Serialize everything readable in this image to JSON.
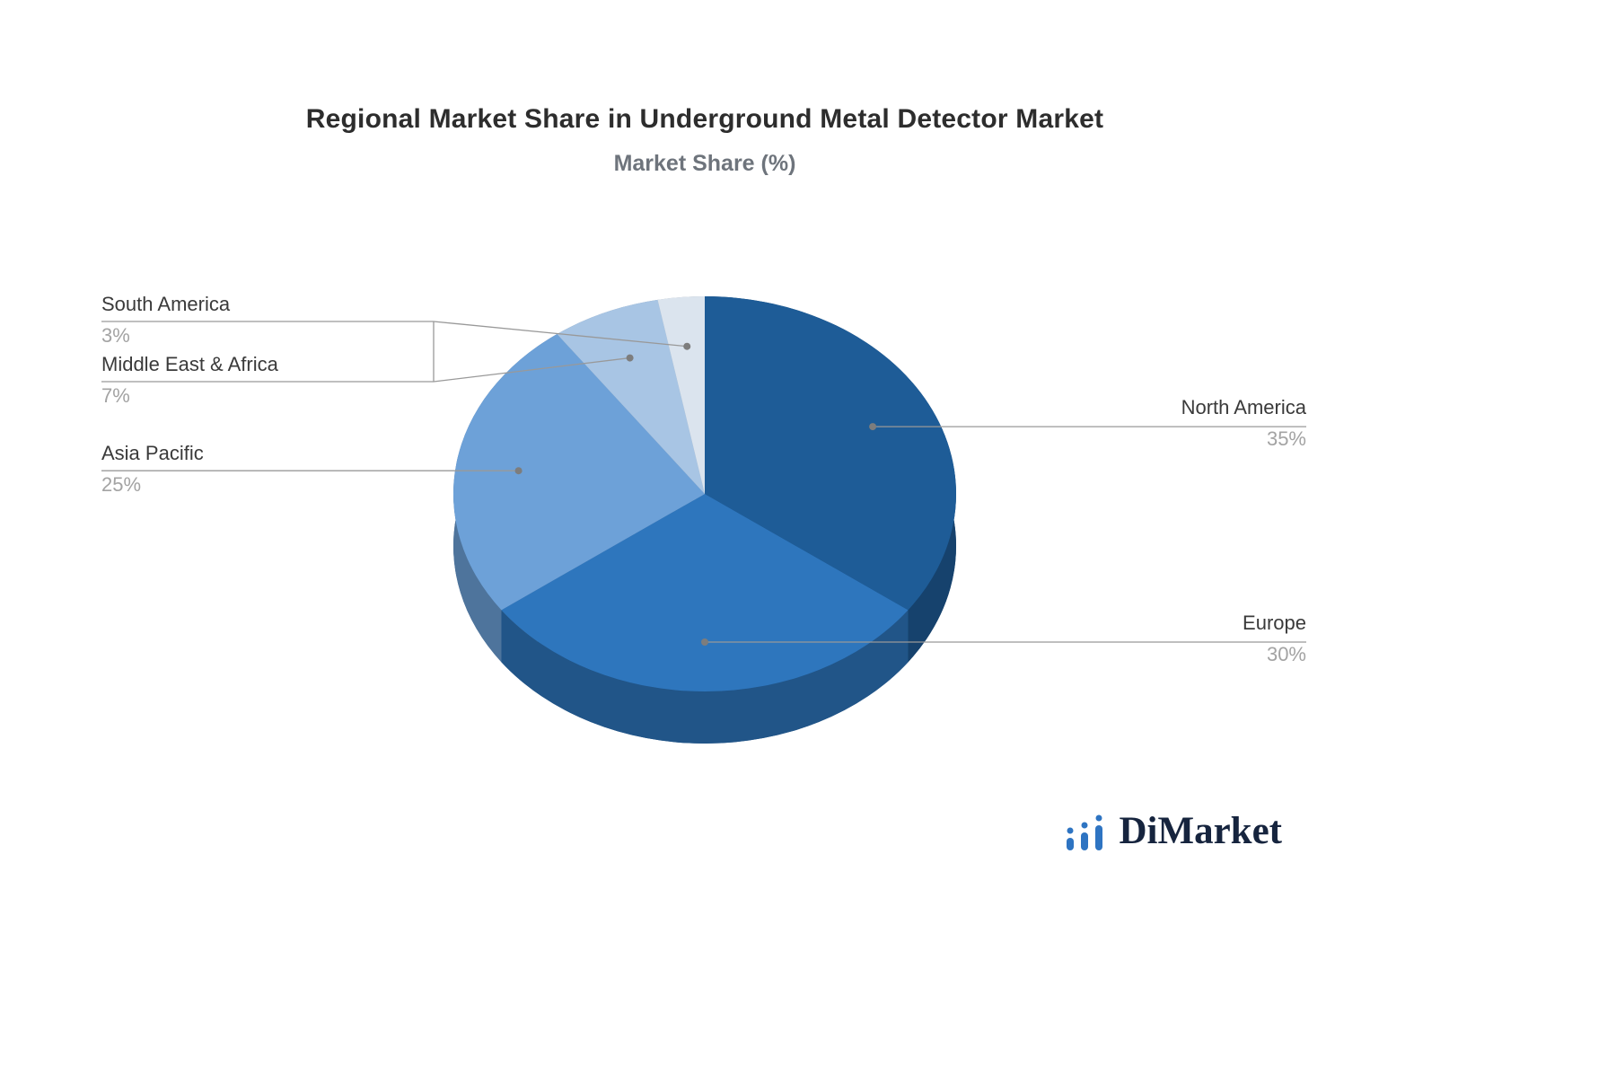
{
  "title": "Regional Market Share in Underground Metal Detector Market",
  "subtitle": "Market Share (%)",
  "logo_text": "DiMarket",
  "chart_data": {
    "type": "pie",
    "style": "3d-pie",
    "title": "Regional Market Share in Underground Metal Detector Market",
    "subtitle": "Market Share (%)",
    "unit": "%",
    "start_angle": "top-clockwise",
    "labels": [
      "North America",
      "Europe",
      "Asia Pacific",
      "Middle East & Africa",
      "South America"
    ],
    "values": [
      35,
      30,
      25,
      7,
      3
    ],
    "value_labels": [
      "35%",
      "30%",
      "25%",
      "7%",
      "3%"
    ],
    "colors": [
      "#1e5c97",
      "#2e76bd",
      "#6da1d8",
      "#a8c5e4",
      "#dbe4ee"
    ],
    "leader_line_color": "#999999",
    "legend": "none"
  }
}
